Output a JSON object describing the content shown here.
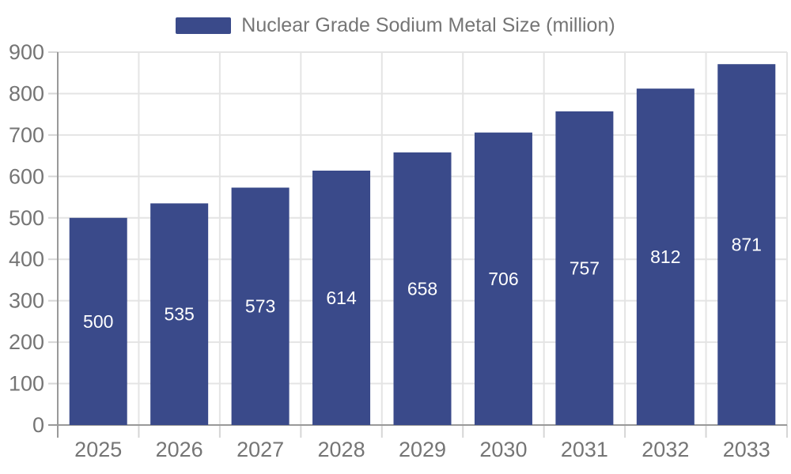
{
  "chart_data": {
    "type": "bar",
    "title": "Nuclear Grade Sodium Metal Size (million)",
    "legend_label": "Nuclear Grade Sodium Metal Size (million)",
    "legend_position": "top-center",
    "categories": [
      "2025",
      "2026",
      "2027",
      "2028",
      "2029",
      "2030",
      "2031",
      "2032",
      "2033"
    ],
    "values": [
      500,
      535,
      573,
      614,
      658,
      706,
      757,
      812,
      871
    ],
    "xlabel": "",
    "ylabel": "",
    "ylim": [
      0,
      900
    ],
    "yticks": [
      0,
      100,
      200,
      300,
      400,
      500,
      600,
      700,
      800,
      900
    ],
    "grid": true,
    "bar_value_labels_inside": true,
    "colors": {
      "bar": "#3A4A8A",
      "bar_label": "#FFFFFF",
      "grid_line": "#E4E4E4",
      "axis_line": "#999999",
      "tick": "#D6D6D6",
      "text": "#757575",
      "background": "#FFFFFF"
    }
  }
}
